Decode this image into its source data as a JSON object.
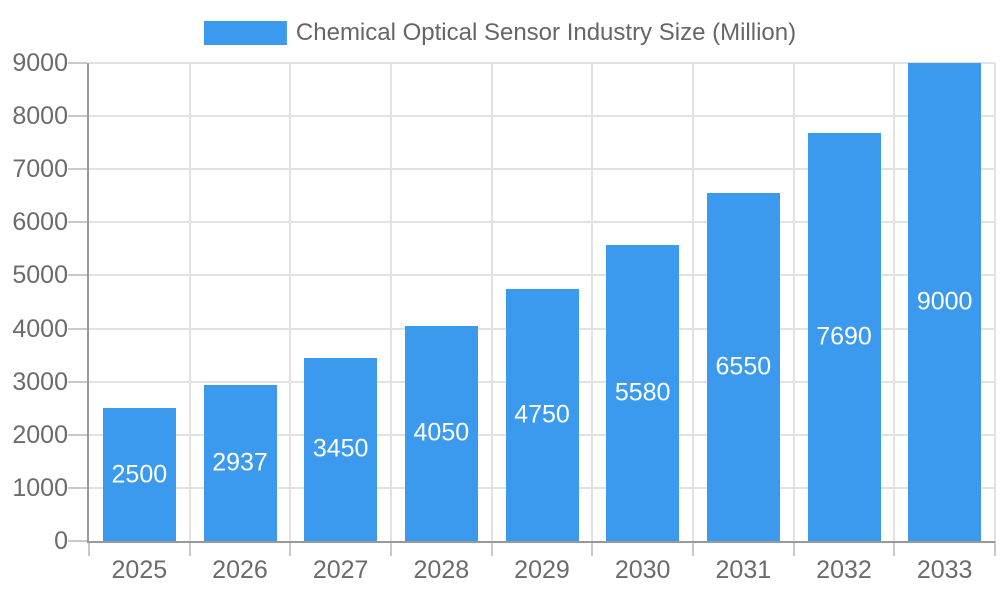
{
  "legend": {
    "label": "Chemical Optical Sensor Industry Size (Million)"
  },
  "chart_data": {
    "type": "bar",
    "title": "Chemical Optical Sensor Industry Size (Million)",
    "series_name": "Chemical Optical Sensor Industry Size (Million)",
    "categories": [
      "2025",
      "2026",
      "2027",
      "2028",
      "2029",
      "2030",
      "2031",
      "2032",
      "2033"
    ],
    "values": [
      2500,
      2937,
      3450,
      4050,
      4750,
      5580,
      6550,
      7690,
      9000
    ],
    "bar_labels": [
      "2500",
      "2937",
      "3450",
      "4050",
      "4750",
      "5580",
      "6550",
      "7690",
      "9000"
    ],
    "xlabel": "",
    "ylabel": "",
    "ylim": [
      0,
      9000
    ],
    "ytick_step": 1000,
    "ytick_labels": [
      "0",
      "1000",
      "2000",
      "3000",
      "4000",
      "5000",
      "6000",
      "7000",
      "8000",
      "9000"
    ],
    "grid": true,
    "legend_position": "top-center",
    "colors": {
      "bar": "#3B9AEE",
      "bar_label": "#FFFFFF",
      "axis_line": "#999999",
      "gridline": "#E2E2E2",
      "tick": "#C9C9C9",
      "axis_text": "#6B6B6B",
      "title_text": "#666666",
      "background": "#FFFFFF"
    }
  }
}
